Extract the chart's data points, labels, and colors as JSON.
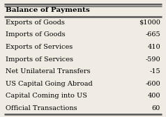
{
  "title": "Balance of Payments",
  "rows": [
    [
      "Exports of Goods",
      "$1000"
    ],
    [
      "Imports of Goods",
      "-665"
    ],
    [
      "Exports of Services",
      "410"
    ],
    [
      "Imports of Services",
      "-590"
    ],
    [
      "Net Unilateral Transfers",
      "-15"
    ],
    [
      "US Capital Going Abroad",
      "-600"
    ],
    [
      "Capital Coming into US",
      "400"
    ],
    [
      "Official Transactions",
      "60"
    ]
  ],
  "bg_color": "#f0ece4",
  "border_color": "#555555",
  "title_fontsize": 7.5,
  "row_fontsize": 7.0,
  "font_family": "serif"
}
